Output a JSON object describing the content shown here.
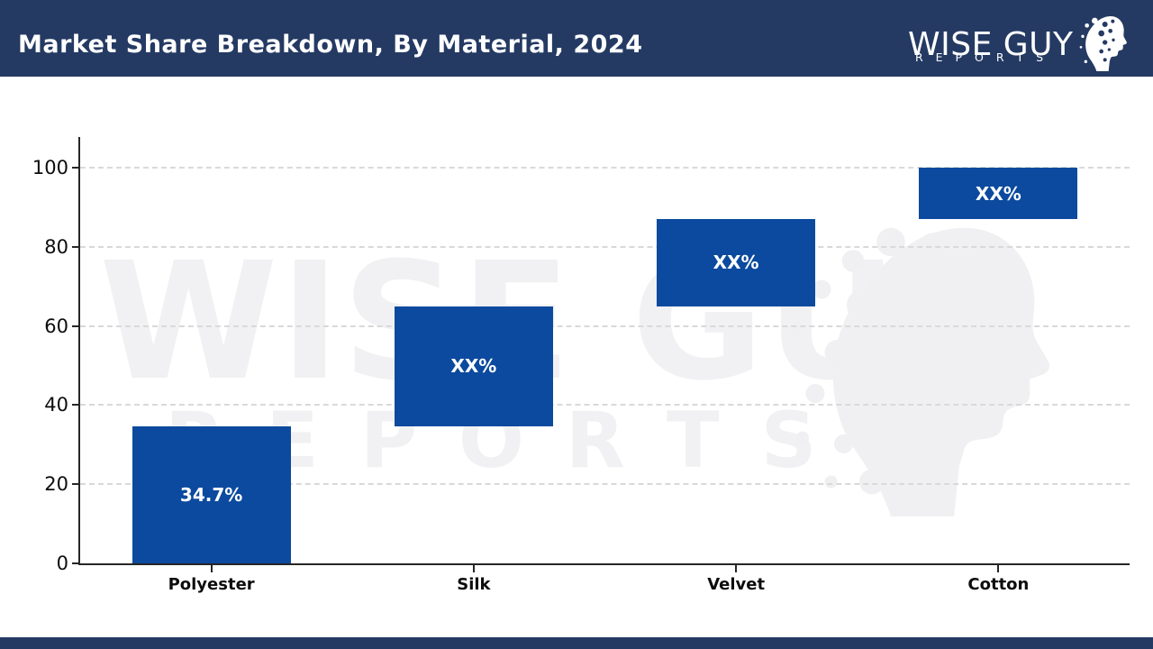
{
  "header": {
    "title": "Market Share Breakdown, By Material, 2024",
    "logo": {
      "line1": "WISE GUY",
      "line2": "R E P O R T S"
    }
  },
  "watermark": {
    "line1": "WISE GUY",
    "line2": "R E P O R T S"
  },
  "colors": {
    "header_bg": "#243a63",
    "bar": "#0b4a9e",
    "gridline": "#d9d9d9",
    "axis": "#262626",
    "watermark": "#f1f1f3",
    "bar_label_text": "#ffffff"
  },
  "chart_data": {
    "type": "bar",
    "subtype": "waterfall-floating-bars",
    "title": "Market Share Breakdown, By Material, 2024",
    "categories": [
      "Polyester",
      "Silk",
      "Velvet",
      "Cotton"
    ],
    "series": [
      {
        "name": "Market Share (%)",
        "segments": [
          {
            "category": "Polyester",
            "start": 0,
            "end": 34.7,
            "label": "34.7%"
          },
          {
            "category": "Silk",
            "start": 34.7,
            "end": 65,
            "label": "XX%"
          },
          {
            "category": "Velvet",
            "start": 65,
            "end": 87,
            "label": "XX%"
          },
          {
            "category": "Cotton",
            "start": 87,
            "end": 100,
            "label": "XX%"
          }
        ]
      }
    ],
    "xlabel": "",
    "ylabel": "",
    "ylim": [
      0,
      100
    ],
    "yticks": [
      0,
      20,
      40,
      60,
      80,
      100
    ],
    "grid": "horizontal-dashed",
    "legend": "none"
  }
}
